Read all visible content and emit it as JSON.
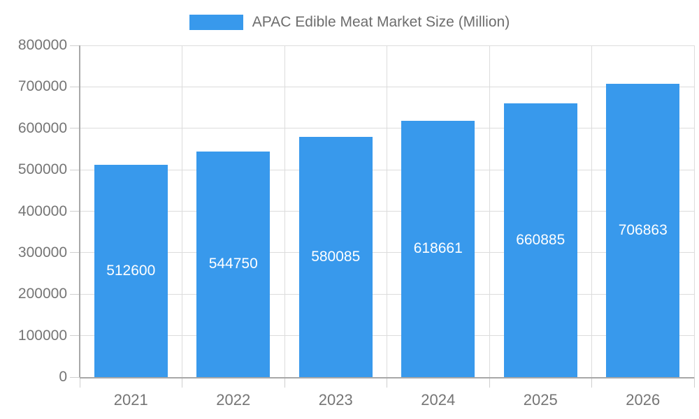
{
  "chart_data": {
    "type": "bar",
    "title": "APAC Edible Meat Market Size (Million)",
    "categories": [
      "2021",
      "2022",
      "2023",
      "2024",
      "2025",
      "2026"
    ],
    "values": [
      512600,
      544750,
      580085,
      618661,
      660885,
      706863
    ],
    "value_labels": [
      "512600",
      "544750",
      "580085",
      "618661",
      "660885",
      "706863"
    ],
    "xlabel": "",
    "ylabel": "",
    "ylim": [
      0,
      800000
    ],
    "y_tick_step": 100000,
    "y_tick_labels": [
      "0",
      "100000",
      "200000",
      "300000",
      "400000",
      "500000",
      "600000",
      "700000",
      "800000"
    ],
    "grid": true,
    "legend_position": "top-center",
    "value_labels_inside_bars": true
  },
  "legend": {
    "series_label": "APAC Edible Meat Market Size (Million)"
  },
  "colors": {
    "background": "#ffffff",
    "bar": "#3899ec",
    "bar_value_text": "#ffffff",
    "grid_line": "#dcdcdc",
    "tick_line": "#cfcfcf",
    "axis_line": "#a8a8a8",
    "axis_text": "#757575",
    "legend_text": "#6d6d6d"
  }
}
